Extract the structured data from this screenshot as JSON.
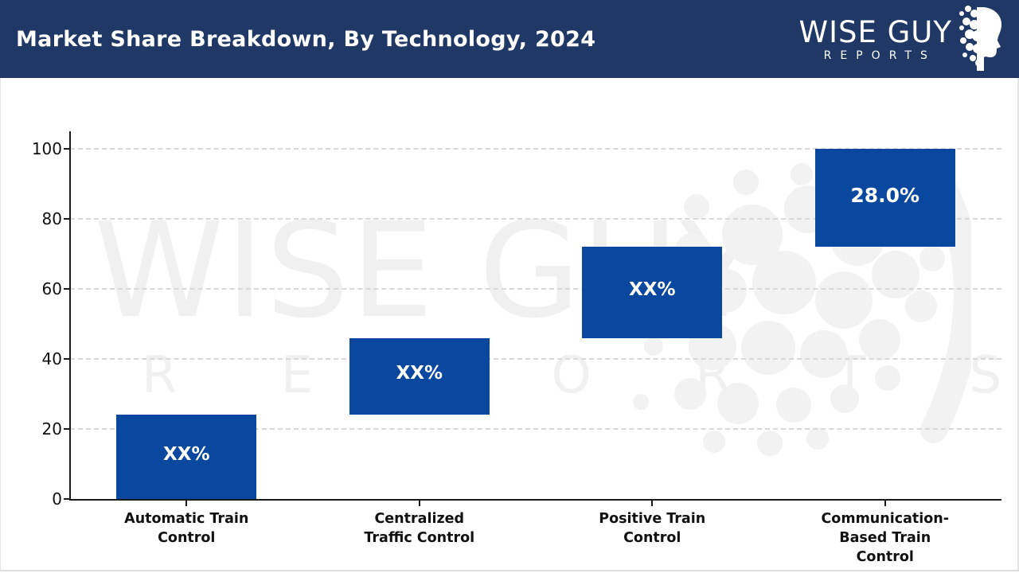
{
  "header": {
    "title": "Market Share Breakdown, By Technology, 2024",
    "logo": {
      "primary": "WISE GUY",
      "secondary": "REPORTS"
    }
  },
  "watermark": {
    "primary": "WISE GUY",
    "secondary": "R E P O R T S"
  },
  "colors": {
    "header_bg": "#1f3865",
    "bar": "#0a479f",
    "bar_label": "#ffffff",
    "grid": "#d8d8d8",
    "axis": "#1a1a1a",
    "watermark": "#f0f0f0"
  },
  "chart_data": {
    "type": "bar",
    "variant": "floating waterfall-style market share bars",
    "title": "Market Share Breakdown, By Technology, 2024",
    "categories": [
      "Automatic Train Control",
      "Centralized Traffic Control",
      "Positive Train Control",
      "Communication-Based Train Control"
    ],
    "category_lines": [
      [
        "Automatic Train",
        "Control"
      ],
      [
        "Centralized",
        "Traffic Control"
      ],
      [
        "Positive Train",
        "Control"
      ],
      [
        "Communication-",
        "Based Train",
        "Control"
      ]
    ],
    "segments": [
      {
        "category": "Automatic Train Control",
        "start": 0,
        "end": 24,
        "label": "XX%"
      },
      {
        "category": "Centralized Traffic Control",
        "start": 24,
        "end": 46,
        "label": "XX%"
      },
      {
        "category": "Positive Train Control",
        "start": 46,
        "end": 72,
        "label": "XX%"
      },
      {
        "category": "Communication-Based Train Control",
        "start": 72,
        "end": 100,
        "label": "28.0%"
      }
    ],
    "estimated_values_pct": [
      24,
      22,
      26,
      28
    ],
    "xlabel": "",
    "ylabel": "",
    "yticks": [
      0,
      20,
      40,
      60,
      80,
      100
    ],
    "ylim": [
      0,
      105
    ],
    "grid": "horizontal dashed",
    "legend": "none"
  }
}
